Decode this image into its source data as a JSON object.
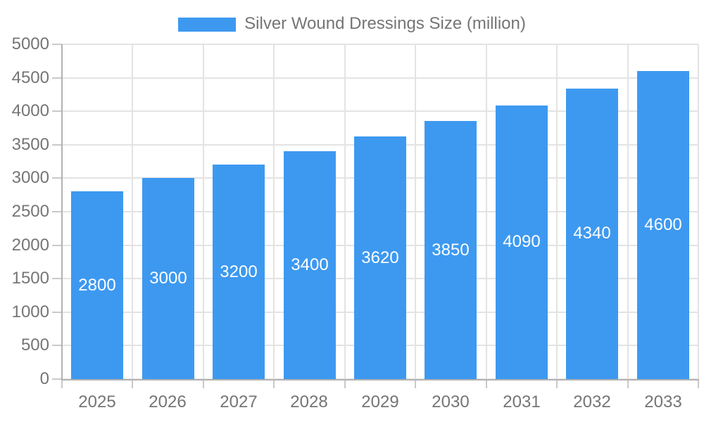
{
  "legend": {
    "series_label": "Silver Wound Dressings Size (million)"
  },
  "colors": {
    "bar": "#3D99F0",
    "bar_label_text": "#FFFFFF",
    "axis_text": "#757575",
    "legend_text": "#757575",
    "gridline": "#E3E3E3",
    "axis_line": "#B2B2B2",
    "tick": "#C9C9C9",
    "background": "#FFFFFF"
  },
  "chart_data": {
    "type": "bar",
    "title": "Silver Wound Dressings Size (million)",
    "categories": [
      "2025",
      "2026",
      "2027",
      "2028",
      "2029",
      "2030",
      "2031",
      "2032",
      "2033"
    ],
    "series": [
      {
        "name": "Silver Wound Dressings Size (million)",
        "values": [
          2800,
          3000,
          3200,
          3400,
          3620,
          3850,
          4090,
          4340,
          4600
        ]
      }
    ],
    "bar_labels": [
      "2800",
      "3000",
      "3200",
      "3400",
      "3620",
      "3850",
      "4090",
      "4340",
      "4600"
    ],
    "xlabel": "",
    "ylabel": "",
    "ylim": [
      0,
      5000
    ],
    "yticks": [
      0,
      500,
      1000,
      1500,
      2000,
      2500,
      3000,
      3500,
      4000,
      4500,
      5000
    ],
    "grid": true,
    "legend_position": "top-center",
    "bar_label_placement": "center-inside"
  }
}
